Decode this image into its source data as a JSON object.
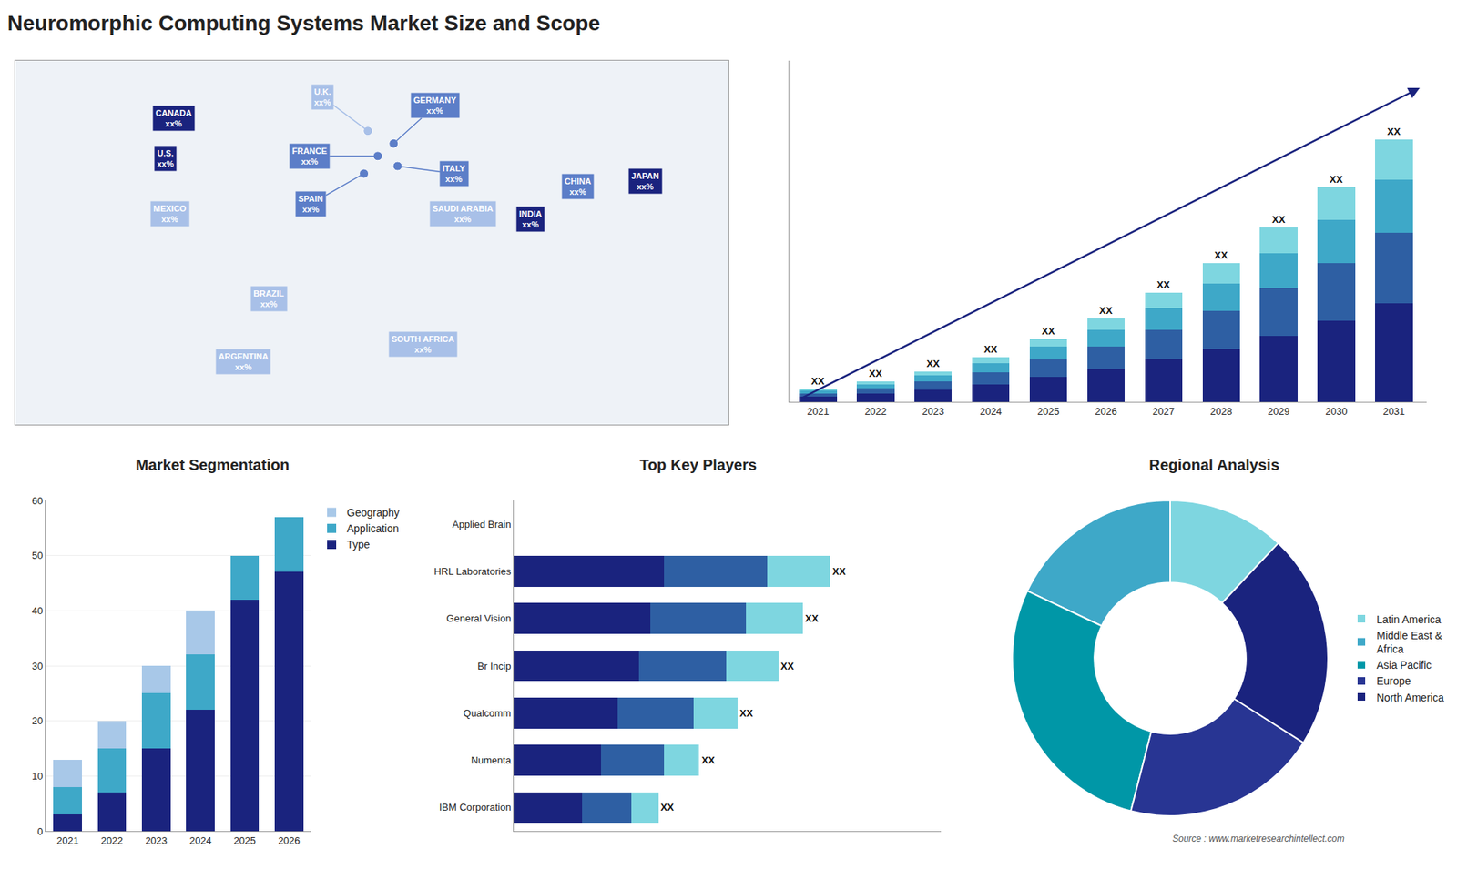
{
  "chart_data": [
    {
      "type": "scatter",
      "title": "Neuromorphic Computing Systems Market Size and Scope",
      "x": [
        -100,
        -104,
        -102,
        -52,
        -65,
        -2,
        3,
        -4,
        11,
        13,
        46,
        26,
        104,
        80,
        138
      ],
      "values": [
        62,
        46,
        24,
        -10,
        -35,
        57,
        47,
        40,
        52,
        43,
        24,
        -28,
        35,
        22,
        37
      ],
      "labels": [
        "CANADA\nxx%",
        "U.S.\nxx%",
        "MEXICO\nxx%",
        "BRAZIL\nxx%",
        "ARGENTINA\nxx%",
        "U.K.\nxx%",
        "FRANCE\nxx%",
        "SPAIN\nxx%",
        "GERMANY\nxx%",
        "ITALY\nxx%",
        "SAUDI ARABIA\nxx%",
        "SOUTH AFRICA\nxx%",
        "CHINA\nxx%",
        "INDIA\nxx%",
        "JAPAN\nxx%"
      ],
      "colors": [
        "#1a237e",
        "#1a237e",
        "#a8c0e8",
        "#a8c0e8",
        "#a8c0e8",
        "#a8c0e8",
        "#5c7ec8",
        "#5c7ec8",
        "#5c7ec8",
        "#5c7ec8",
        "#a8c0e8",
        "#a8c0e8",
        "#5c7ec8",
        "#1a237e",
        "#1a237e"
      ],
      "xlim": [
        -180,
        180
      ],
      "ylim": [
        -60,
        85
      ],
      "tick_labels": false,
      "grid": false
    },
    {
      "type": "bar",
      "categories": [
        "2021",
        "2022",
        "2023",
        "2024",
        "2025",
        "2026",
        "2027",
        "2028",
        "2029",
        "2030",
        "2031"
      ],
      "stacked": true,
      "series": [
        {
          "color": "#1a237e",
          "values": [
            1.0,
            1.6,
            2.4,
            3.5,
            5.0,
            6.5,
            8.5,
            10.5,
            13.0,
            16.0,
            19.5
          ]
        },
        {
          "color": "#2e5fa3",
          "values": [
            0.7,
            1.1,
            1.6,
            2.4,
            3.4,
            4.5,
            5.8,
            7.5,
            9.5,
            11.5,
            14.0
          ]
        },
        {
          "color": "#3ea8c8",
          "values": [
            0.5,
            0.8,
            1.2,
            1.7,
            2.5,
            3.3,
            4.3,
            5.5,
            7.0,
            8.5,
            10.5
          ]
        },
        {
          "color": "#7ed6e0",
          "values": [
            0.3,
            0.5,
            0.8,
            1.2,
            1.6,
            2.2,
            3.0,
            4.0,
            5.0,
            6.5,
            8.0
          ]
        }
      ],
      "labels": [
        "XX",
        "XX",
        "XX",
        "XX",
        "XX",
        "XX",
        "XX",
        "XX",
        "XX",
        "XX",
        "XX"
      ],
      "ylim": [
        0,
        67.6
      ],
      "tick_labels": "x",
      "grid": false
    },
    {
      "type": "bar",
      "title": "Market Segmentation",
      "categories": [
        "2021",
        "2022",
        "2023",
        "2024",
        "2025",
        "2026"
      ],
      "stacked": true,
      "series": [
        {
          "name": "Type",
          "color": "#1a237e",
          "values": [
            3,
            7,
            15,
            22,
            42,
            47
          ]
        },
        {
          "name": "Application",
          "color": "#3ea8c8",
          "values": [
            5,
            8,
            10,
            10,
            8,
            10
          ]
        },
        {
          "name": "Geography",
          "color": "#a8c8e8",
          "values": [
            5,
            5,
            5,
            8,
            0,
            0
          ]
        }
      ],
      "ylim": [
        0,
        60
      ],
      "yticks": [
        0,
        10,
        20,
        30,
        40,
        50,
        60
      ],
      "grid": true,
      "legend": "right"
    },
    {
      "type": "bar",
      "title": "Top Key Players",
      "orientation": "horizontal",
      "stacked": true,
      "categories": [
        "Applied Brain",
        "HRL Laboratories",
        "General Vision",
        "Br Incip",
        "Qualcomm",
        "Numenta",
        "IBM Corporation"
      ],
      "series": [
        {
          "color": "#1a237e",
          "values": [
            0.0,
            5.5,
            5.0,
            4.6,
            3.8,
            3.2,
            2.5
          ]
        },
        {
          "color": "#2e5fa3",
          "values": [
            0.0,
            3.8,
            3.5,
            3.2,
            2.8,
            2.3,
            1.8
          ]
        },
        {
          "color": "#7ed6e0",
          "values": [
            0.0,
            2.3,
            2.1,
            1.9,
            1.6,
            1.3,
            1.0
          ]
        }
      ],
      "labels": [
        null,
        "XX",
        "XX",
        "XX",
        "XX",
        "XX",
        "XX"
      ],
      "xlim": [
        0,
        15.66
      ],
      "tick_labels": "y",
      "grid": false
    },
    {
      "type": "pie",
      "title": "Regional Analysis",
      "categories": [
        "Latin America",
        "Middle East &\nAfrica",
        "Asia Pacific",
        "Europe",
        "North America"
      ],
      "values": [
        12,
        18,
        28,
        20,
        22
      ],
      "colors": [
        "#7ed6e0",
        "#3ea8c8",
        "#0097a7",
        "#283593",
        "#1a237e"
      ],
      "legend": "right",
      "annotations": [
        "Source : www.marketresearchintellect.com"
      ]
    }
  ]
}
